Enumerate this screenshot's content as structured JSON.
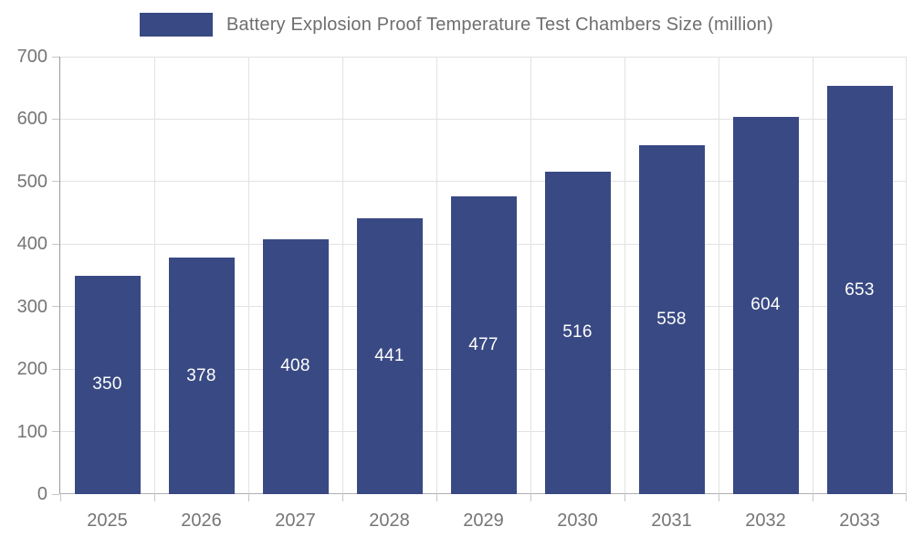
{
  "legend": {
    "label": "Battery Explosion Proof Temperature Test Chambers Size (million)"
  },
  "chart_data": {
    "type": "bar",
    "title": "Battery Explosion Proof Temperature Test Chambers Size (million)",
    "categories": [
      "2025",
      "2026",
      "2027",
      "2028",
      "2029",
      "2030",
      "2031",
      "2032",
      "2033"
    ],
    "values": [
      350,
      378,
      408,
      441,
      477,
      516,
      558,
      604,
      653
    ],
    "xlabel": "",
    "ylabel": "",
    "ylim": [
      0,
      700
    ],
    "yticks": [
      0,
      100,
      200,
      300,
      400,
      500,
      600,
      700
    ],
    "grid": true,
    "legend_position": "top",
    "bar_color": "#394983",
    "value_label_color": "#ffffff",
    "axis_label_color": "#757575",
    "title_color": "#6e6e6e",
    "gridline_color": "#e2e2e4"
  }
}
